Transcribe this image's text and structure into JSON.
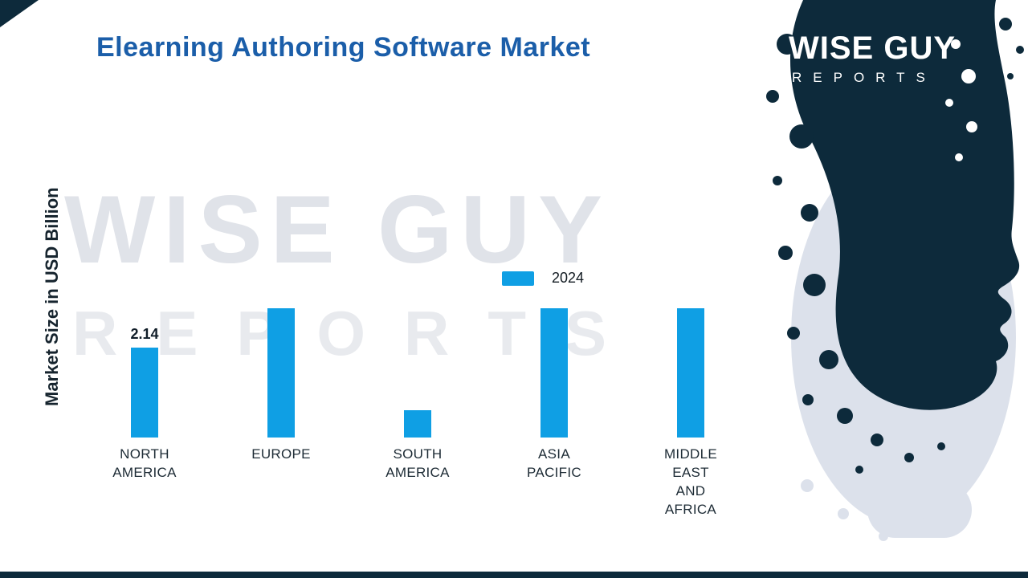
{
  "page": {
    "title": "Elearning Authoring Software Market"
  },
  "logo": {
    "wordmark": "WISE GUY",
    "subtext": "REPORTS"
  },
  "watermark": {
    "line1": "WISE GUY",
    "line2": "REPORTS"
  },
  "chart_data": {
    "type": "bar",
    "title": "Elearning Authoring Software Market",
    "ylabel": "Market Size in USD Billion",
    "legend": [
      {
        "label": "2024",
        "color": "#0f9fe4"
      }
    ],
    "legend_position": "top-right-of-plot",
    "categories": [
      "NORTH AMERICA",
      "EUROPE",
      "SOUTH AMERICA",
      "ASIA PACIFIC",
      "MIDDLE EAST AND AFRICA"
    ],
    "category_lines": [
      [
        "NORTH",
        "AMERICA"
      ],
      [
        "EUROPE"
      ],
      [
        "SOUTH",
        "AMERICA"
      ],
      [
        "ASIA",
        "PACIFIC"
      ],
      [
        "MIDDLE",
        "EAST",
        "AND",
        "AFRICA"
      ]
    ],
    "values": [
      2.14,
      3.1,
      0.65,
      3.1,
      3.1
    ],
    "value_labels": [
      "2.14",
      "",
      "",
      "",
      ""
    ],
    "ylim": [
      0,
      3.2
    ],
    "grid": false,
    "bar_color": "#0f9fe4"
  },
  "colors": {
    "title_blue": "#1b5ea9",
    "bar_blue": "#0f9fe4",
    "navy": "#0d2a3b",
    "watermark_gray": "#e0e3e9"
  }
}
